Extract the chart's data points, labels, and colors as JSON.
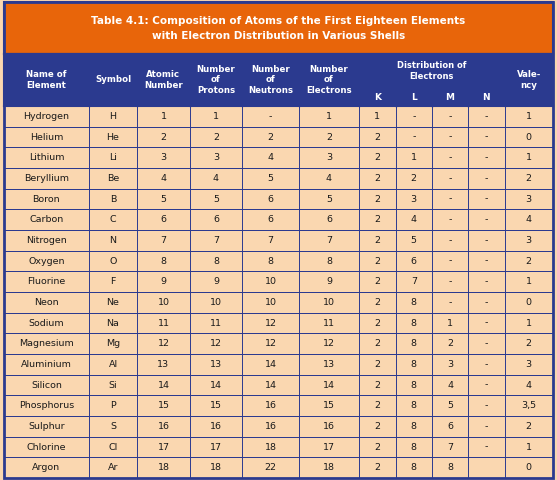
{
  "title_line1": "Table 4.1: Composition of Atoms of the First Eighteen Elements",
  "title_line2": "with Electron Distribution in Various Shells",
  "title_bg": "#E8650A",
  "title_color": "#FFFFFF",
  "header_bg": "#2B3A8F",
  "header_color": "#FFFFFF",
  "row_bg": "#FAD7B0",
  "row_alt_bg": "#FAD7B0",
  "border_color": "#2B3A8F",
  "table_bg": "#FAD7B0",
  "col_headers": [
    "Name of\nElement",
    "Symbol",
    "Atomic\nNumber",
    "Number\nof\nProtons",
    "Number\nof\nNeutrons",
    "Number\nof\nElectrons",
    "K",
    "L",
    "M",
    "N",
    "Vale-\nncy"
  ],
  "subheader": "Distribution of\nElectrons",
  "rows": [
    [
      "Hydrogen",
      "H",
      "1",
      "1",
      "-",
      "1",
      "1",
      "-",
      "-",
      "-",
      "1"
    ],
    [
      "Helium",
      "He",
      "2",
      "2",
      "2",
      "2",
      "2",
      "-",
      "-",
      "-",
      "0"
    ],
    [
      "Lithium",
      "Li",
      "3",
      "3",
      "4",
      "3",
      "2",
      "1",
      "-",
      "-",
      "1"
    ],
    [
      "Beryllium",
      "Be",
      "4",
      "4",
      "5",
      "4",
      "2",
      "2",
      "-",
      "-",
      "2"
    ],
    [
      "Boron",
      "B",
      "5",
      "5",
      "6",
      "5",
      "2",
      "3",
      "-",
      "-",
      "3"
    ],
    [
      "Carbon",
      "C",
      "6",
      "6",
      "6",
      "6",
      "2",
      "4",
      "-",
      "-",
      "4"
    ],
    [
      "Nitrogen",
      "N",
      "7",
      "7",
      "7",
      "7",
      "2",
      "5",
      "-",
      "-",
      "3"
    ],
    [
      "Oxygen",
      "O",
      "8",
      "8",
      "8",
      "8",
      "2",
      "6",
      "-",
      "-",
      "2"
    ],
    [
      "Fluorine",
      "F",
      "9",
      "9",
      "10",
      "9",
      "2",
      "7",
      "-",
      "-",
      "1"
    ],
    [
      "Neon",
      "Ne",
      "10",
      "10",
      "10",
      "10",
      "2",
      "8",
      "-",
      "-",
      "0"
    ],
    [
      "Sodium",
      "Na",
      "11",
      "11",
      "12",
      "11",
      "2",
      "8",
      "1",
      "-",
      "1"
    ],
    [
      "Magnesium",
      "Mg",
      "12",
      "12",
      "12",
      "12",
      "2",
      "8",
      "2",
      "-",
      "2"
    ],
    [
      "Aluminium",
      "Al",
      "13",
      "13",
      "14",
      "13",
      "2",
      "8",
      "3",
      "-",
      "3"
    ],
    [
      "Silicon",
      "Si",
      "14",
      "14",
      "14",
      "14",
      "2",
      "8",
      "4",
      "-",
      "4"
    ],
    [
      "Phosphorus",
      "P",
      "15",
      "15",
      "16",
      "15",
      "2",
      "8",
      "5",
      "-",
      "3,5"
    ],
    [
      "Sulphur",
      "S",
      "16",
      "16",
      "16",
      "16",
      "2",
      "8",
      "6",
      "-",
      "2"
    ],
    [
      "Chlorine",
      "Cl",
      "17",
      "17",
      "18",
      "17",
      "2",
      "8",
      "7",
      "-",
      "1"
    ],
    [
      "Argon",
      "Ar",
      "18",
      "18",
      "22",
      "18",
      "2",
      "8",
      "8",
      "",
      "0"
    ]
  ],
  "figsize": [
    5.57,
    4.8
  ],
  "dpi": 100
}
